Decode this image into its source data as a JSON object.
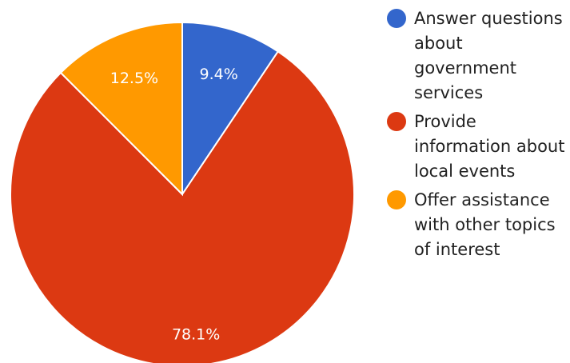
{
  "chart_data": {
    "type": "pie",
    "title": "",
    "slices": [
      {
        "label": "Answer questions about government services",
        "value": 9.4,
        "display": "9.4%",
        "color": "#3366cc"
      },
      {
        "label": "Provide information about local events",
        "value": 78.1,
        "display": "78.1%",
        "color": "#dc3912"
      },
      {
        "label": "Offer assistance with other topics of interest",
        "value": 12.5,
        "display": "12.5%",
        "color": "#ff9900"
      }
    ],
    "legend_position": "right"
  }
}
